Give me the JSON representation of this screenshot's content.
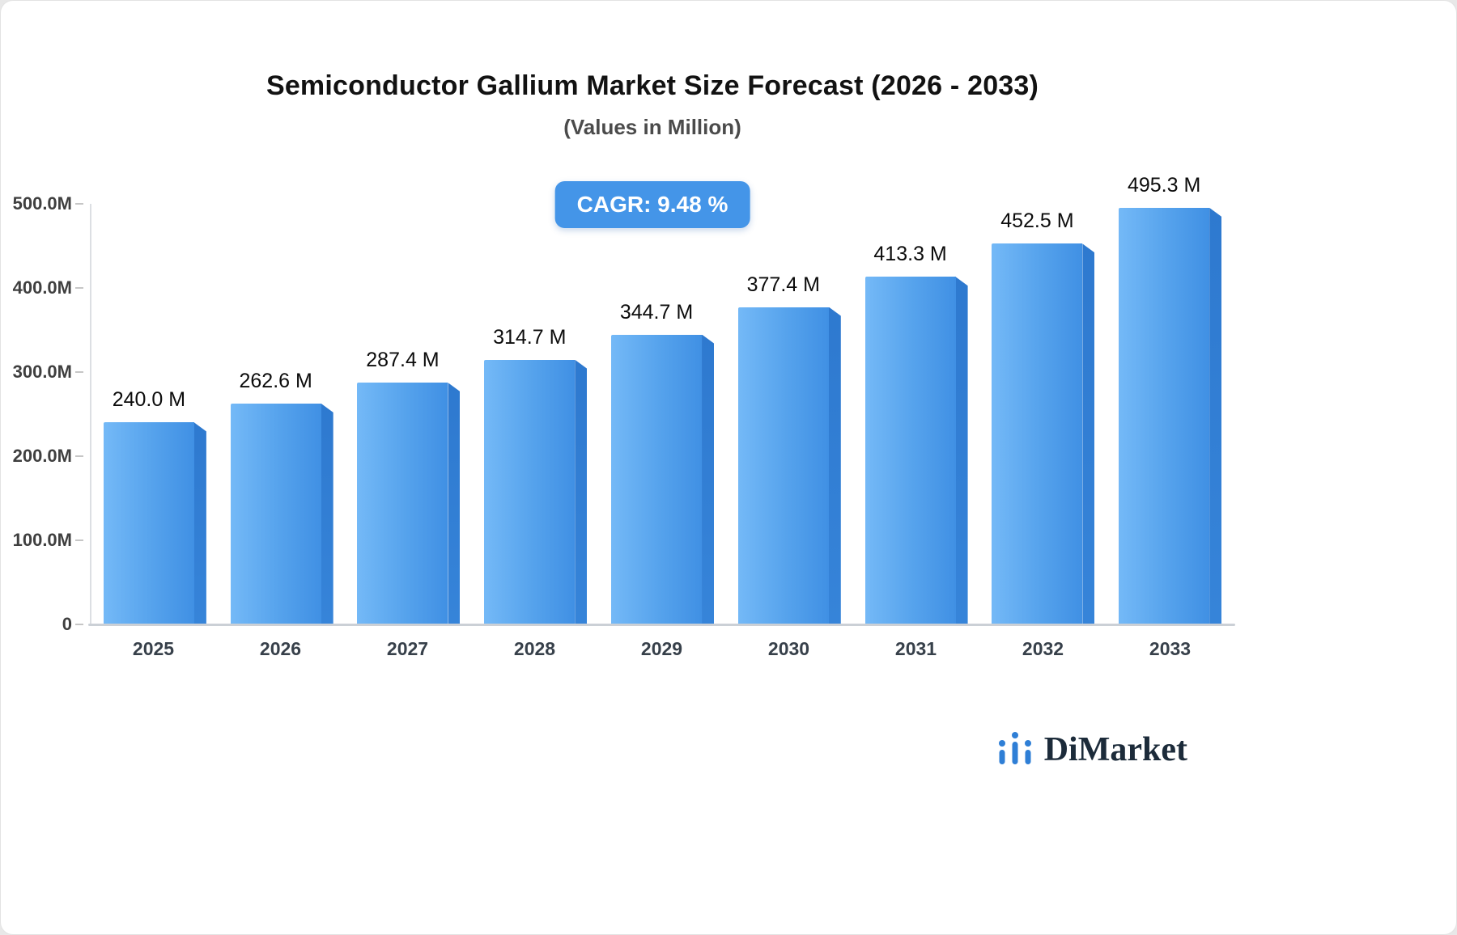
{
  "header": {
    "title": "Semiconductor Gallium Market Size Forecast (2026 - 2033)",
    "subtitle": "(Values in Million)"
  },
  "badge": {
    "label": "CAGR: 9.48 %"
  },
  "brand": {
    "name": "DiMarket",
    "icon": "bar-chart-logo-icon",
    "icon_color": "#2f7fd6",
    "text_color": "#1c2b3a"
  },
  "chart_data": {
    "type": "bar",
    "title": "Semiconductor Gallium Market Size Forecast (2026 - 2033)",
    "subtitle": "(Values in Million)",
    "unit": "Million",
    "categories": [
      "2025",
      "2026",
      "2027",
      "2028",
      "2029",
      "2030",
      "2031",
      "2032",
      "2033"
    ],
    "values": [
      240.0,
      262.6,
      287.4,
      314.7,
      344.7,
      377.4,
      413.3,
      452.5,
      495.3
    ],
    "value_labels": [
      "240.0 M",
      "262.6 M",
      "287.4 M",
      "314.7 M",
      "344.7 M",
      "377.4 M",
      "413.3 M",
      "452.5 M",
      "495.3 M"
    ],
    "y_ticks": [
      500,
      400,
      300,
      200,
      100,
      0
    ],
    "y_tick_labels": [
      "500.0M",
      "400.0M",
      "300.0M",
      "200.0M",
      "100.0M",
      "0"
    ],
    "ylim": [
      0,
      500
    ],
    "xlabel": "",
    "ylabel": "",
    "grid": false,
    "legend": "none",
    "bar_color_light": "#74b9f7",
    "bar_color_dark": "#4090e4",
    "bar_side_color": "#2e79cf",
    "cagr": "9.48 %"
  }
}
